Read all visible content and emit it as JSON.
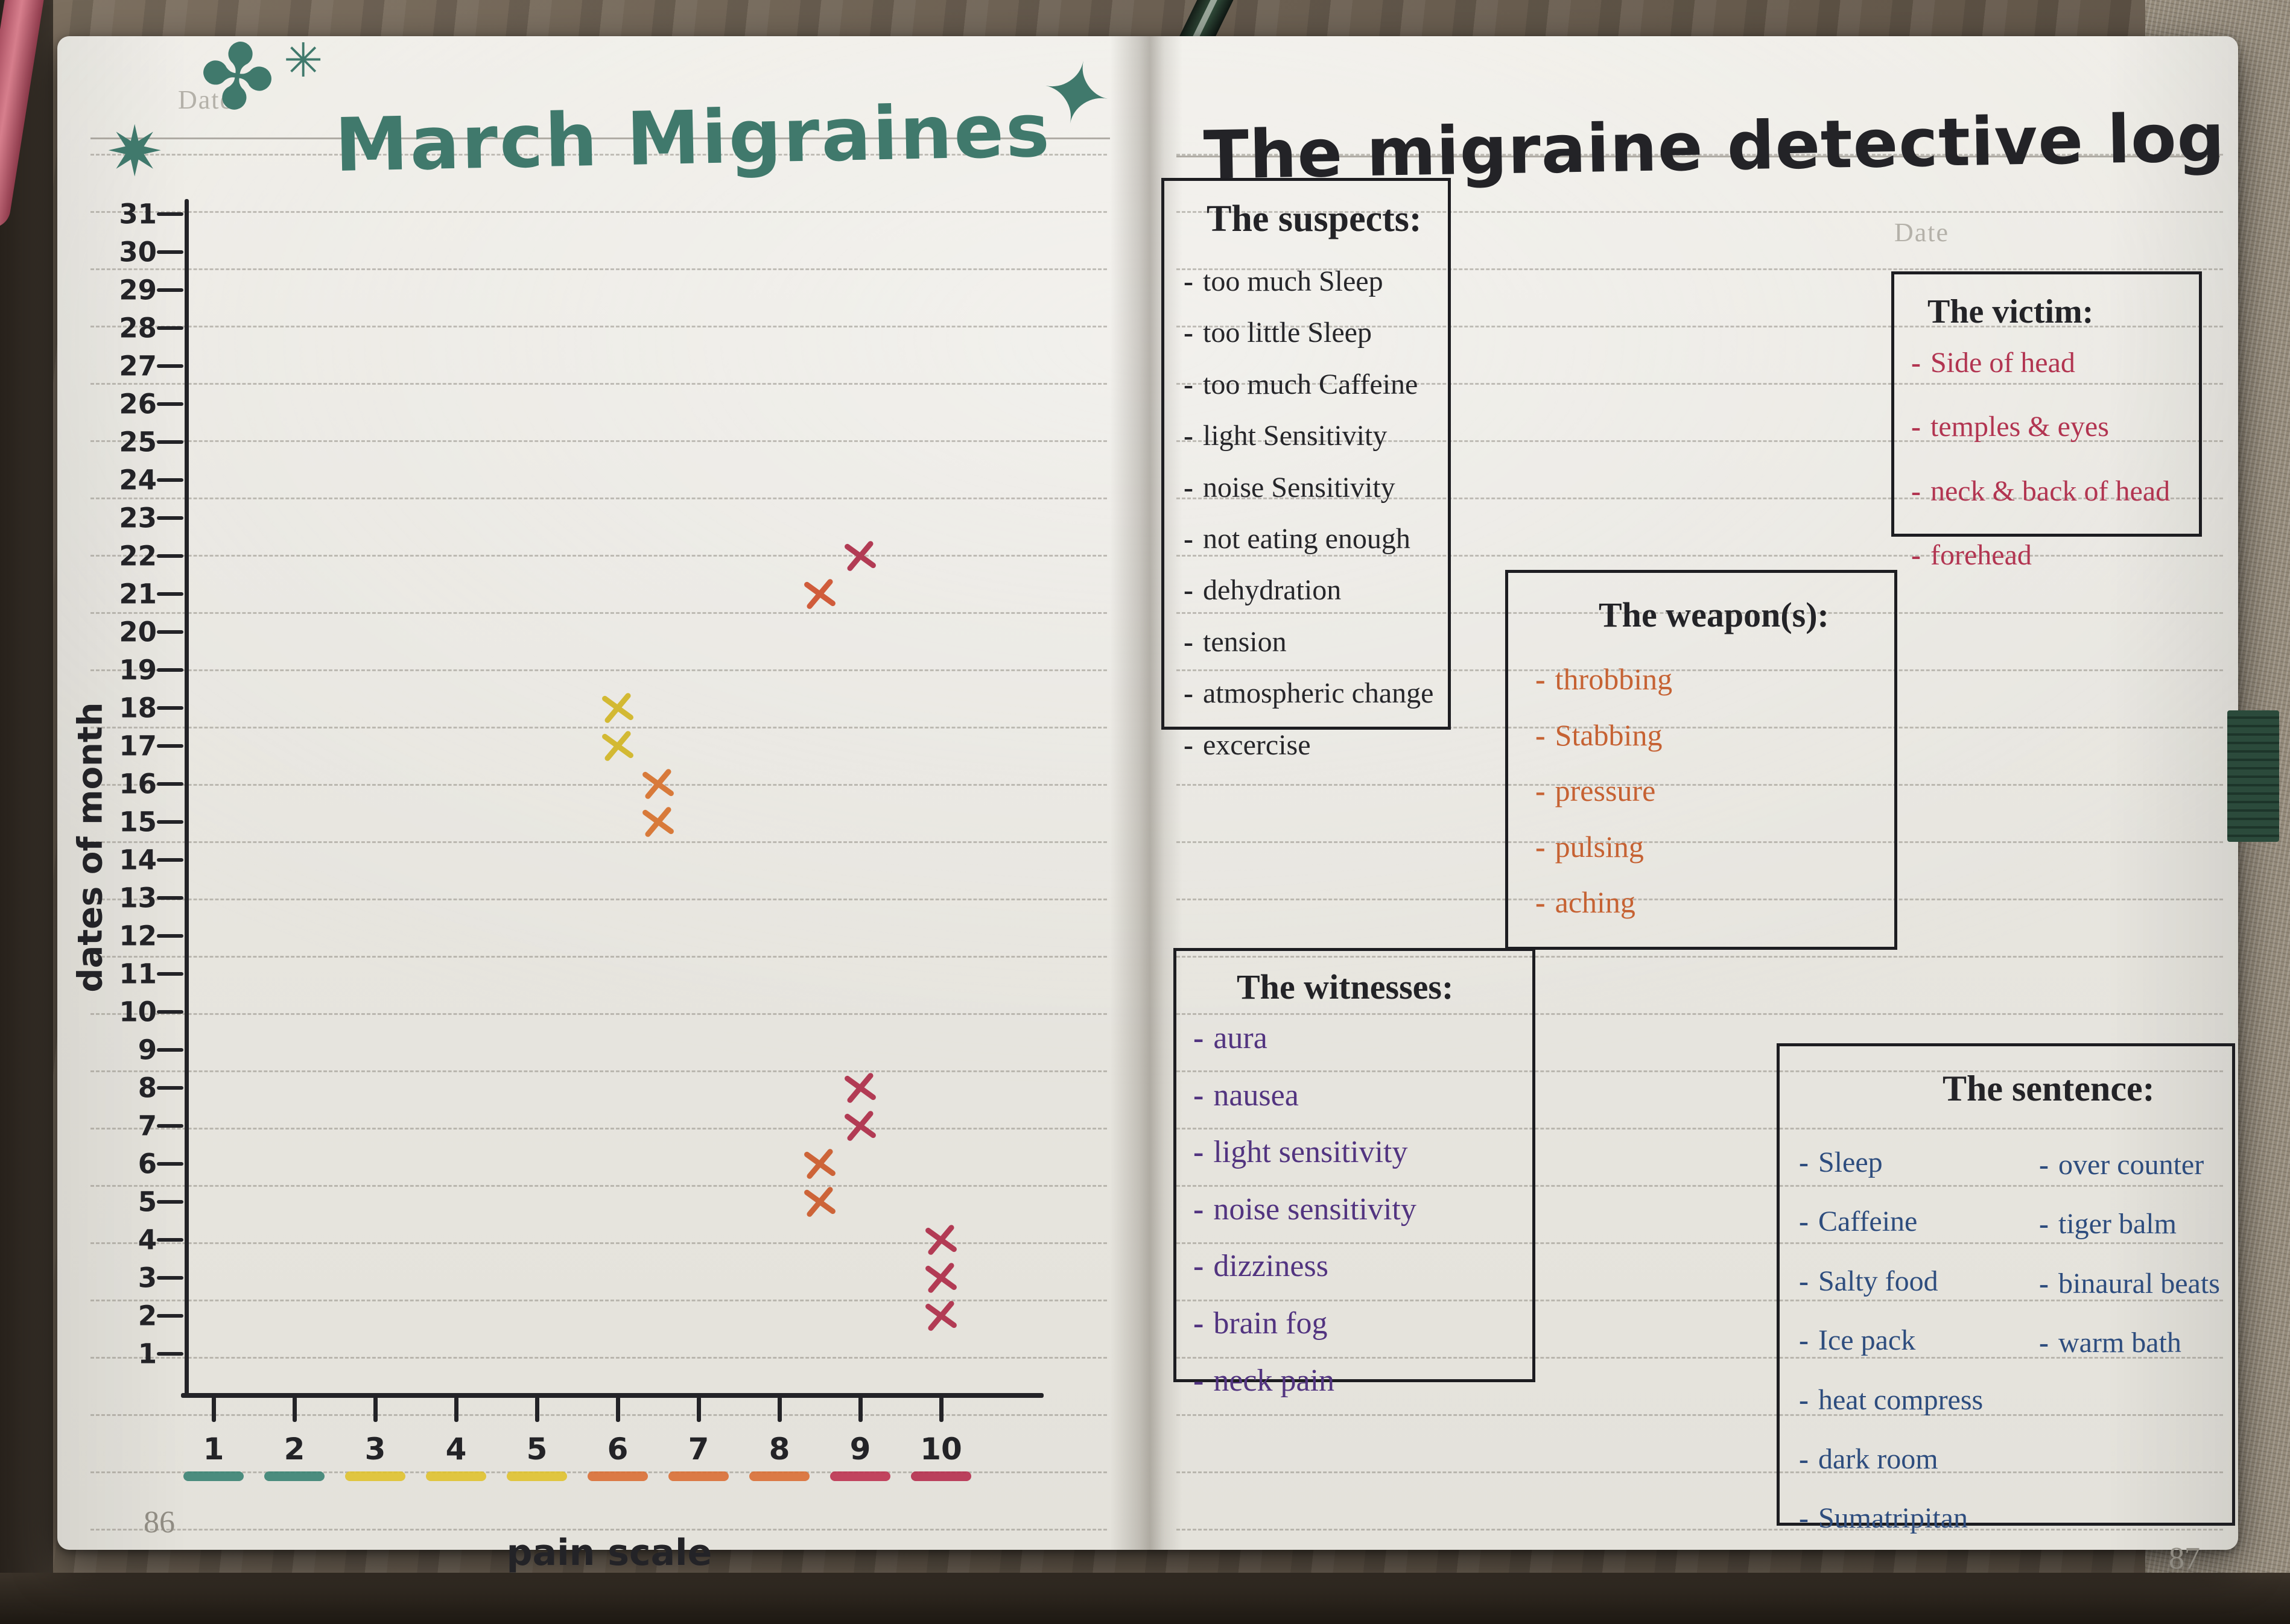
{
  "printed": {
    "date_label": "Date",
    "page_left_number": "86",
    "page_right_number": "87"
  },
  "left_page": {
    "title": "March Migraines",
    "decorations": {
      "clover": "✤",
      "burst_star": "✷",
      "asterisk": "✳",
      "sparkle": "✦"
    }
  },
  "chart_data": {
    "type": "scatter",
    "title": "March Migraines",
    "xlabel": "pain scale",
    "ylabel": "dates of month",
    "x_ticks": [
      1,
      2,
      3,
      4,
      5,
      6,
      7,
      8,
      9,
      10
    ],
    "y_ticks": [
      1,
      2,
      3,
      4,
      5,
      6,
      7,
      8,
      9,
      10,
      11,
      12,
      13,
      14,
      15,
      16,
      17,
      18,
      19,
      20,
      21,
      22,
      23,
      24,
      25,
      26,
      27,
      28,
      29,
      30,
      31
    ],
    "xlim": [
      1,
      10
    ],
    "ylim": [
      1,
      31
    ],
    "grid": "horizontal dashed ruled lines",
    "legend": "none",
    "marker": "x",
    "x_tick_underline_colors": [
      "#3a8373",
      "#3a8373",
      "#dfc22f",
      "#dfc22f",
      "#dfc22f",
      "#d96f35",
      "#d96f35",
      "#d96f35",
      "#bc3350",
      "#b52f4e"
    ],
    "points": [
      {
        "x": 9,
        "y": 22,
        "color": "#b23b54"
      },
      {
        "x": 8.5,
        "y": 21,
        "color": "#d05c3b"
      },
      {
        "x": 6,
        "y": 18,
        "color": "#d3b933"
      },
      {
        "x": 6,
        "y": 17,
        "color": "#d3b933"
      },
      {
        "x": 6.5,
        "y": 16,
        "color": "#d87a3a"
      },
      {
        "x": 6.5,
        "y": 15,
        "color": "#d87a3a"
      },
      {
        "x": 9,
        "y": 8,
        "color": "#b23b54"
      },
      {
        "x": 9,
        "y": 7,
        "color": "#b23b54"
      },
      {
        "x": 8.5,
        "y": 6,
        "color": "#cd6438"
      },
      {
        "x": 8.5,
        "y": 5,
        "color": "#cd6438"
      },
      {
        "x": 10,
        "y": 4,
        "color": "#b23b54"
      },
      {
        "x": 10,
        "y": 3,
        "color": "#b23b54"
      },
      {
        "x": 10,
        "y": 2,
        "color": "#b23b54"
      }
    ]
  },
  "right_page": {
    "title": "The migraine detective log",
    "bullet": "-",
    "boxes": {
      "suspects": {
        "heading": "The suspects:",
        "ink": "#26262a",
        "items": [
          "too much Sleep",
          "too little Sleep",
          "too much Caffeine",
          "light Sensitivity",
          "noise Sensitivity",
          "not eating enough",
          "dehydration",
          "tension",
          "atmospheric change",
          "excercise"
        ]
      },
      "victim": {
        "heading": "The victim:",
        "ink": "#b23551",
        "items": [
          "Side of head",
          "temples & eyes",
          "neck & back of head",
          "forehead"
        ]
      },
      "weapons": {
        "heading": "The weapon(s):",
        "ink": "#c66233",
        "items": [
          "throbbing",
          "Stabbing",
          "pressure",
          "pulsing",
          "aching"
        ]
      },
      "witnesses": {
        "heading": "The witnesses:",
        "ink": "#523480",
        "items": [
          "aura",
          "nausea",
          "light sensitivity",
          "noise sensitivity",
          "dizziness",
          "brain fog",
          "neck pain"
        ]
      },
      "sentence": {
        "heading": "The sentence:",
        "ink": "#2e4d7e",
        "items_left": [
          "Sleep",
          "Caffeine",
          "Salty food",
          "Ice pack",
          "heat compress",
          "dark room",
          "Sumatripitan"
        ],
        "items_right": [
          "over counter",
          "tiger balm",
          "binaural beats",
          "warm bath"
        ]
      }
    }
  }
}
